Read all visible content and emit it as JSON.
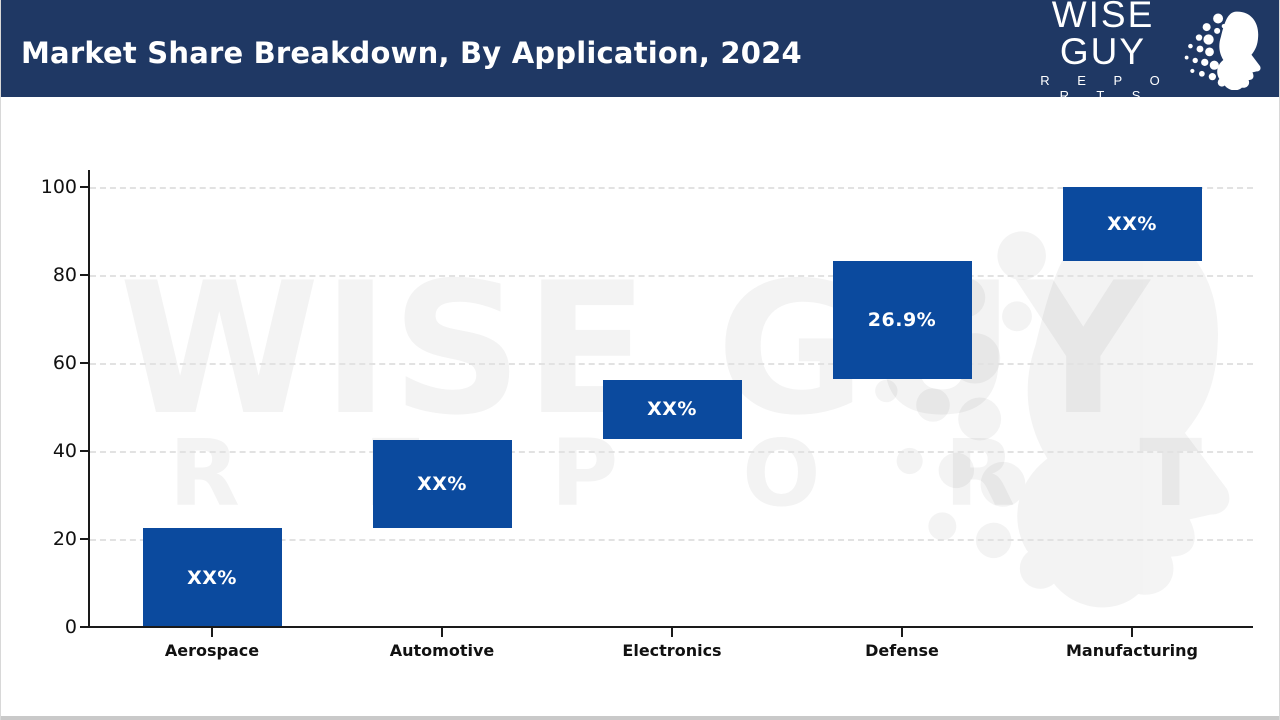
{
  "header": {
    "title": "Market Share Breakdown, By Application, 2024",
    "logo": {
      "line1": "WISE GUY",
      "line2": "REPORTS"
    }
  },
  "watermark": {
    "line1": "WISE GUY",
    "line2": "REPORTS"
  },
  "chart_data": {
    "type": "bar",
    "subtype": "waterfall",
    "title": "Market Share Breakdown, By Application, 2024",
    "categories": [
      "Aerospace",
      "Automotive",
      "Electronics",
      "Defense",
      "Manufacturing"
    ],
    "segments": [
      [
        0,
        22.5
      ],
      [
        22.5,
        42.6
      ],
      [
        42.7,
        56.2
      ],
      [
        56.3,
        83.2
      ],
      [
        83.2,
        100
      ]
    ],
    "bar_labels": [
      "XX%",
      "XX%",
      "XX%",
      "26.9%",
      "XX%"
    ],
    "defense_value_pct": 26.9,
    "yticks": [
      0,
      20,
      40,
      60,
      80,
      100
    ],
    "ylim": [
      0,
      104
    ],
    "xlabel": "",
    "ylabel": "",
    "grid": "horizontal-dashed",
    "legend": "none"
  },
  "colors": {
    "header_bg": "#1f3864",
    "bar": "#0b4a9e",
    "axis": "#1a1a1a",
    "grid": "#e2e2e2",
    "text": "#111111",
    "bar_label": "#ffffff",
    "watermark": "#f3f3f3"
  }
}
